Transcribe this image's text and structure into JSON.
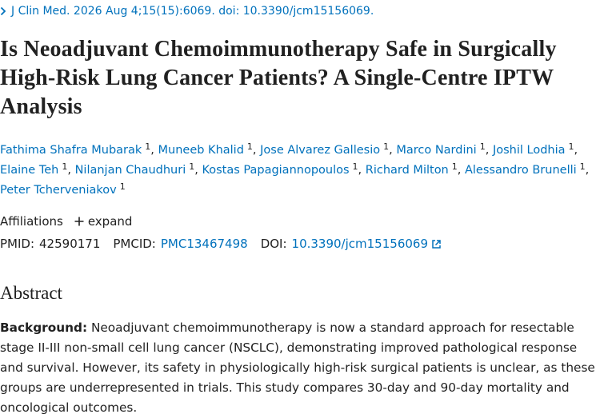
{
  "journal": {
    "citation": "J Clin Med. 2026 Aug 4;15(15):6069. doi: 10.3390/jcm15156069."
  },
  "title": "Is Neoadjuvant Chemoimmunotherapy Safe in Surgically High-Risk Lung Cancer Patients? A Single-Centre IPTW Analysis",
  "author_separator": ",",
  "authors": [
    {
      "name": "Fathima Shafra Mubarak",
      "affiliation": "1"
    },
    {
      "name": "Muneeb Khalid",
      "affiliation": "1"
    },
    {
      "name": "Jose Alvarez Gallesio",
      "affiliation": "1"
    },
    {
      "name": "Marco Nardini",
      "affiliation": "1"
    },
    {
      "name": "Joshil Lodhia",
      "affiliation": "1"
    },
    {
      "name": "Elaine Teh",
      "affiliation": "1"
    },
    {
      "name": "Nilanjan Chaudhuri",
      "affiliation": "1"
    },
    {
      "name": "Kostas Papagiannopoulos",
      "affiliation": "1"
    },
    {
      "name": "Richard Milton",
      "affiliation": "1"
    },
    {
      "name": "Alessandro Brunelli",
      "affiliation": "1"
    },
    {
      "name": "Peter Tcherveniakov",
      "affiliation": "1"
    }
  ],
  "affiliations": {
    "label": "Affiliations",
    "toggle": "expand"
  },
  "identifiers": {
    "pmid_label": "PMID:",
    "pmid": "42590171",
    "pmcid_label": "PMCID:",
    "pmcid": "PMC13467498",
    "doi_label": "DOI:",
    "doi": "10.3390/jcm15156069"
  },
  "abstract": {
    "heading": "Abstract",
    "background_label": "Background:",
    "background_text": "Neoadjuvant chemoimmunotherapy is now a standard approach for resectable stage II-III non-small cell lung cancer (NSCLC), demonstrating improved pathological response and survival. However, its safety in physiologically high-risk surgical patients is unclear, as these groups are underrepresented in trials. This study compares 30-day and 90-day mortality and oncological outcomes."
  }
}
